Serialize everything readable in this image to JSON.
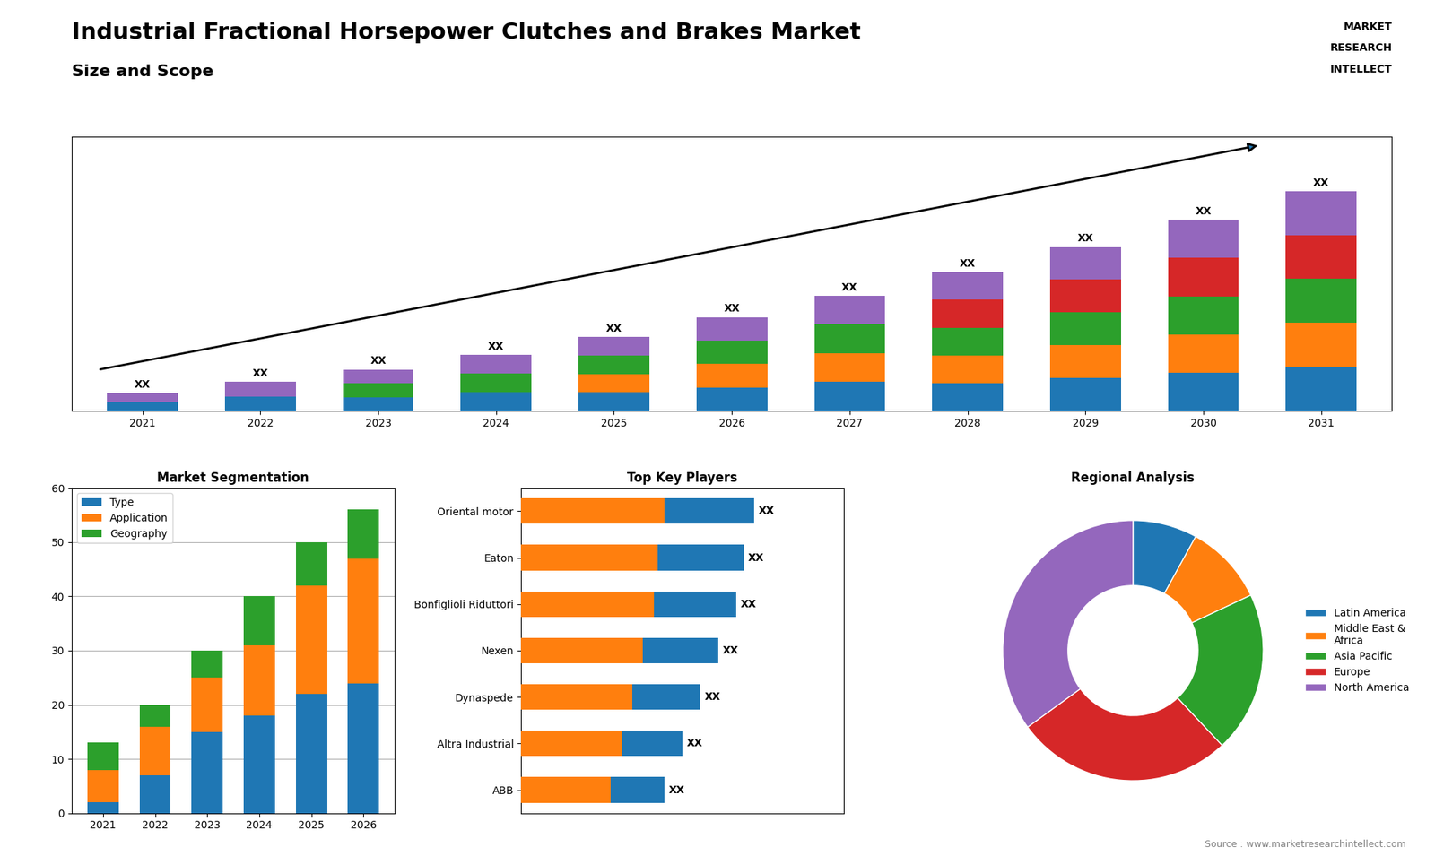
{
  "title": "Industrial Fractional Horsepower Clutches and Brakes Market",
  "subtitle": "Size and Scope",
  "annotations": [
    "Source : www.marketresearchintellect.com",
    "MARKET",
    "RESEARCH",
    "INTELLECT"
  ],
  "chart_data": [
    {
      "type": "bar",
      "stacked": true,
      "categories": [
        "2021",
        "2022",
        "2023",
        "2024",
        "2025",
        "2026",
        "2027",
        "2028",
        "2029",
        "2030",
        "2031"
      ],
      "ylim": [
        0,
        15.2
      ],
      "tick_labels": "x",
      "data_labels": true,
      "series": [
        {
          "values": [
            0.5,
            0.8,
            0.7666666666666666,
            1.0333333333333334,
            1.025,
            1.3,
            1.6,
            1.54,
            1.82,
            2.12,
            2.44
          ]
        },
        {
          "values": [
            null,
            null,
            null,
            null,
            1.025,
            1.3,
            1.6,
            1.54,
            1.82,
            2.12,
            2.44
          ]
        },
        {
          "values": [
            null,
            null,
            0.7666666666666666,
            1.0333333333333334,
            1.025,
            1.3,
            1.6,
            1.54,
            1.82,
            2.12,
            2.44
          ]
        },
        {
          "values": [
            null,
            null,
            null,
            null,
            null,
            null,
            null,
            1.54,
            1.82,
            2.12,
            2.44
          ]
        },
        {
          "values": [
            0.5,
            0.8,
            0.7666666666666666,
            1.0333333333333334,
            1.025,
            1.3,
            1.6,
            1.54,
            1.82,
            2.12,
            2.44
          ],
          "value_labels": [
            "XX",
            "XX",
            "XX",
            "XX",
            "XX",
            "XX",
            "XX",
            "XX",
            "XX",
            "XX",
            "XX"
          ]
        }
      ]
    },
    {
      "type": "bar",
      "title": "Market Segmentation",
      "stacked": true,
      "categories": [
        "2021",
        "2022",
        "2023",
        "2024",
        "2025",
        "2026"
      ],
      "ylim": [
        0,
        60
      ],
      "yticks": [
        0,
        10,
        20,
        30,
        40,
        50,
        60
      ],
      "grid": true,
      "legend": "upper left",
      "series": [
        {
          "name": "Type",
          "values": [
            2,
            7,
            15,
            18,
            22,
            24
          ]
        },
        {
          "name": "Application",
          "values": [
            6,
            9,
            10,
            13,
            20,
            23
          ]
        },
        {
          "name": "Geography",
          "values": [
            5,
            4,
            5,
            9,
            8,
            9
          ]
        }
      ]
    },
    {
      "type": "bar",
      "title": "Top Key Players",
      "orientation": "horizontal",
      "stacked": false,
      "categories": [
        "Oriental motor",
        "Eaton",
        "Bonfiglioli Riduttori",
        "Nexen",
        "Dynaspede",
        "Altra Industrial",
        "ABB"
      ],
      "xlim": [
        0,
        9
      ],
      "tick_labels": "y",
      "data_labels": true,
      "series": [
        {
          "values": [
            6.5,
            6.2,
            6.0,
            5.5,
            5.0,
            4.5,
            4.0
          ],
          "value_labels": [
            "XX",
            "XX",
            "XX",
            "XX",
            "XX",
            "XX",
            "XX"
          ]
        },
        {
          "values": [
            4.0,
            3.8,
            3.7,
            3.4,
            3.1,
            2.8,
            2.5
          ]
        }
      ]
    },
    {
      "type": "pie",
      "title": "Regional Analysis",
      "categories": [
        "Latin America",
        "Middle East &\nAfrica",
        "Asia Pacific",
        "Europe",
        "North America"
      ],
      "values": [
        8,
        10,
        20,
        27,
        35
      ],
      "legend": "center left"
    }
  ]
}
